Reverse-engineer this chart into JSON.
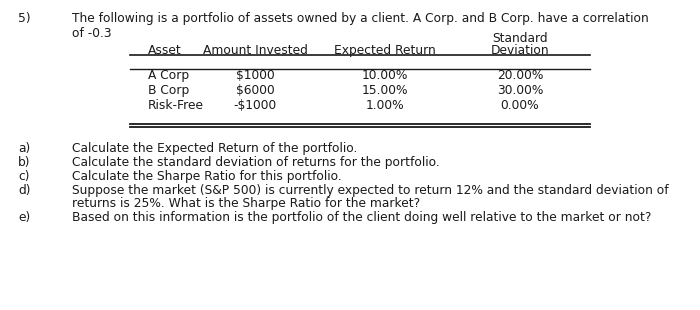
{
  "question_number": "5)",
  "intro_line1": "The following is a portfolio of assets owned by a client. A Corp. and B Corp. have a correlation",
  "intro_line2": "of -0.3",
  "col_headers": [
    "Asset",
    "Amount Invested",
    "Expected Return",
    "Standard",
    "Deviation"
  ],
  "table_rows": [
    [
      "A Corp",
      "$1000",
      "10.00%",
      "20.00%"
    ],
    [
      "B Corp",
      "$6000",
      "15.00%",
      "30.00%"
    ],
    [
      "Risk-Free",
      "-$1000",
      "1.00%",
      "0.00%"
    ]
  ],
  "sub_items": [
    [
      "a)",
      "Calculate the Expected Return of the portfolio."
    ],
    [
      "b)",
      "Calculate the standard deviation of returns for the portfolio."
    ],
    [
      "c)",
      "Calculate the Sharpe Ratio for this portfolio."
    ],
    [
      "d)",
      "Suppose the market (S&P 500) is currently expected to return 12% and the standard deviation of"
    ],
    [
      "",
      "returns is 25%. What is the Sharpe Ratio for the market?"
    ],
    [
      "e)",
      "Based on this information is the portfolio of the client doing well relative to the market or not?"
    ]
  ],
  "bg_color": "#ffffff",
  "text_color": "#1a1a1a",
  "font_size": 8.8
}
